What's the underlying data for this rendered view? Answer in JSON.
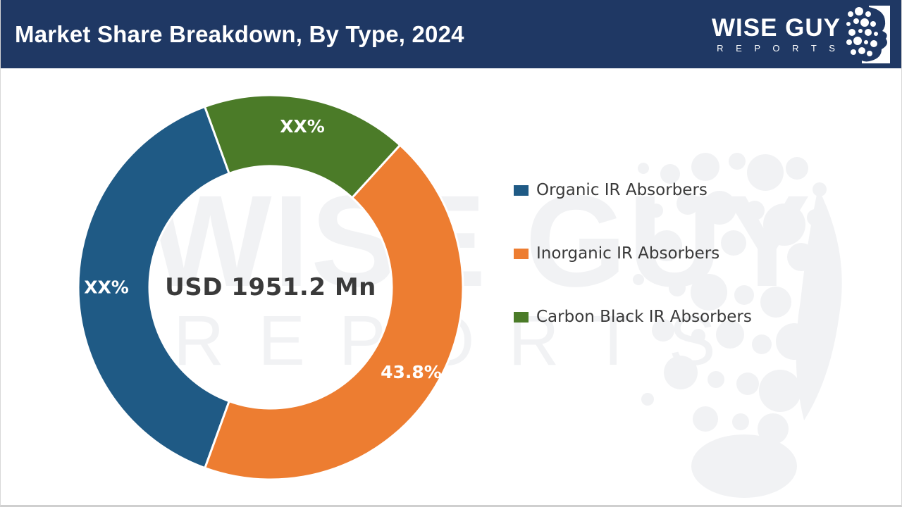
{
  "header": {
    "title": "Market Share Breakdown, By Type, 2024",
    "logo": {
      "title": "WISE GUY",
      "subtitle": "R E P O R T S"
    }
  },
  "watermark": {
    "line1": "WISE GUY",
    "line2": "REPORTS"
  },
  "chart_data": {
    "type": "pie",
    "subtype": "donut",
    "title": "Market Share Breakdown, By Type, 2024",
    "center_label": "USD 1951.2 Mn",
    "units": "USD Mn",
    "start_angle_deg": 110,
    "counterclockwise": true,
    "inner_radius_ratio": 0.63,
    "legend_position": "right",
    "grid": false,
    "series": [
      {
        "name": "Organic IR Absorbers",
        "value_pct": 38.9,
        "label": "XX%",
        "color": "#1F5A85"
      },
      {
        "name": "Inorganic IR Absorbers",
        "value_pct": 43.8,
        "label": "43.8%",
        "color": "#ED7D31"
      },
      {
        "name": "Carbon Black IR Absorbers",
        "value_pct": 17.3,
        "label": "XX%",
        "color": "#4B7B28"
      }
    ]
  },
  "colors": {
    "header_bg": "#1F3864",
    "text_dark": "#3A3A3A",
    "slice_label": "#FFFFFF",
    "watermark": "#F1F2F4",
    "border": "#CFCFCF"
  }
}
